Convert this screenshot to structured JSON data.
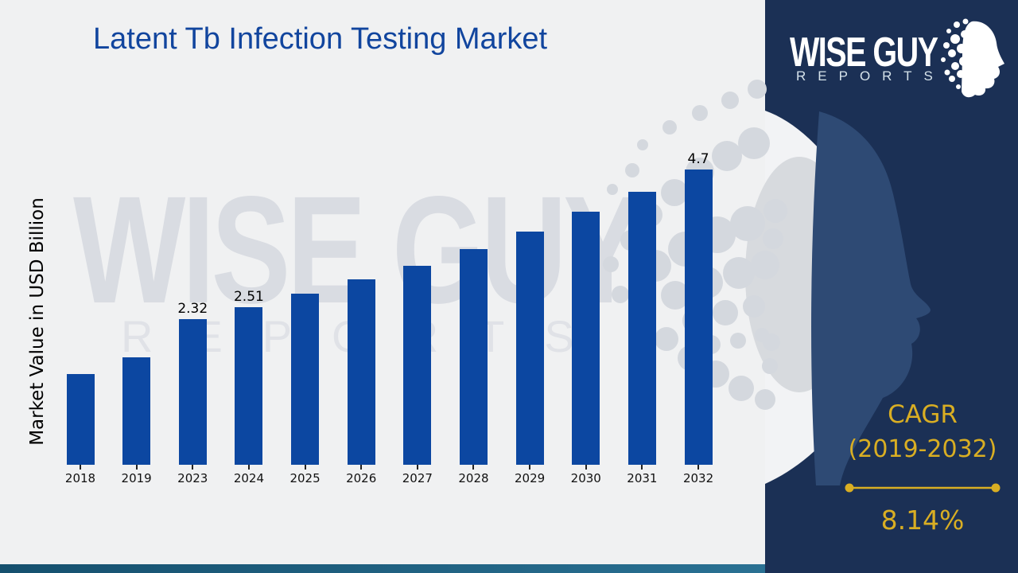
{
  "title": "Latent Tb Infection Testing Market",
  "watermark": {
    "word": "WISE GUY",
    "reports": "REPORTS"
  },
  "brand": {
    "word": "WISE GUY",
    "reports": "REPORTS",
    "face_icon": "face-profile-dots-icon"
  },
  "panel": {
    "bg_color": "#1b3055",
    "accent_color": "#d9ae23",
    "cagr_label": "CAGR",
    "cagr_period": "(2019-2032)",
    "cagr_value": "8.14%"
  },
  "chart_data": {
    "type": "bar",
    "title": "Latent Tb Infection Testing Market",
    "categories": [
      "2018",
      "2019",
      "2023",
      "2024",
      "2025",
      "2026",
      "2027",
      "2028",
      "2029",
      "2030",
      "2031",
      "2032"
    ],
    "values": [
      1.44,
      1.71,
      2.32,
      2.51,
      2.72,
      2.95,
      3.17,
      3.43,
      3.71,
      4.02,
      4.34,
      4.7
    ],
    "data_labels": [
      "",
      "",
      "2.32",
      "2.51",
      "",
      "",
      "",
      "",
      "",
      "",
      "",
      "4.7"
    ],
    "ylabel": "Market Value in USD Billion",
    "xlabel": "",
    "ylim": [
      0,
      5
    ],
    "bar_color": "#0c47a1",
    "grid": false,
    "legend": null
  }
}
